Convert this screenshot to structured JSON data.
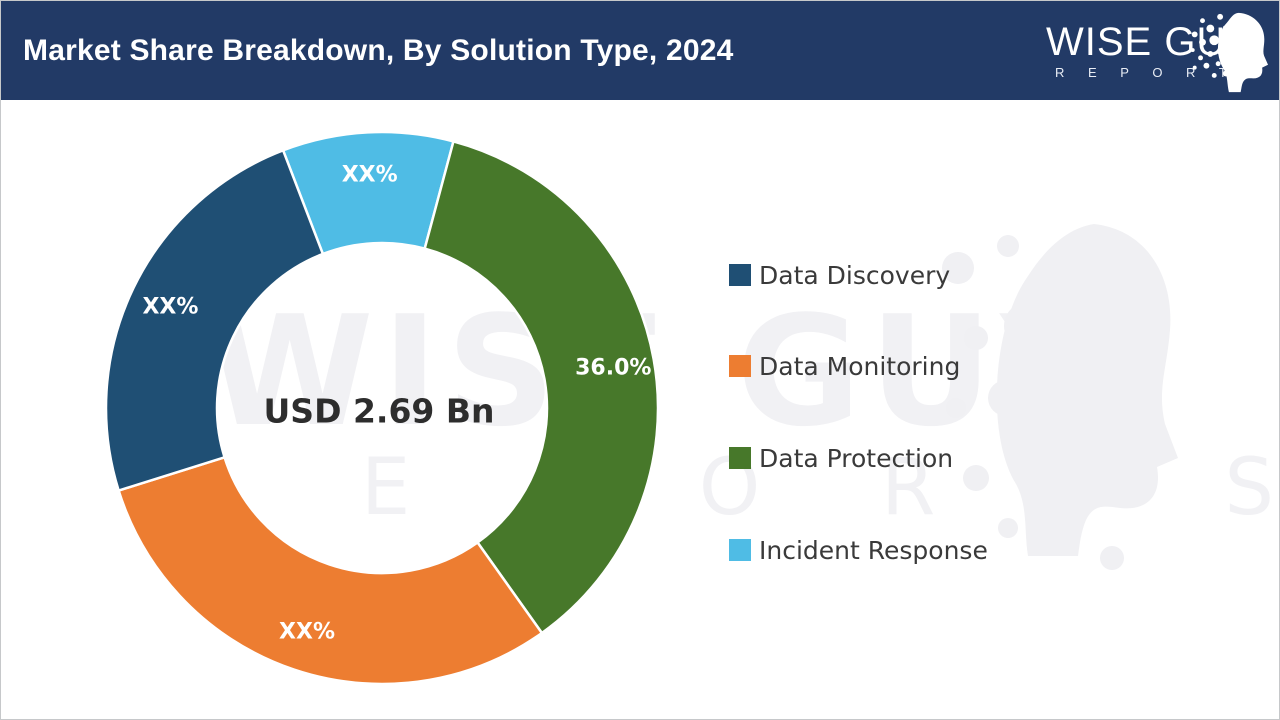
{
  "header": {
    "title": "Market Share Breakdown, By Solution Type, 2024",
    "bg_color": "#223A66",
    "logo": {
      "wordmark": "WISE GUY",
      "subtext": "R E P O R T S"
    }
  },
  "chart_data": {
    "type": "pie",
    "subtype": "donut",
    "title": "Market Share Breakdown, By Solution Type, 2024",
    "center_label": "USD 2.69 Bn",
    "start_angle_deg": -21,
    "direction": "clockwise",
    "legend_position": "right",
    "segments": [
      {
        "label": "Incident Response",
        "display_value": "XX%",
        "value_pct": 10,
        "color": "#4FBCE5"
      },
      {
        "label": "Data Protection",
        "display_value": "36.0%",
        "value_pct": 36,
        "color": "#47782A"
      },
      {
        "label": "Data Monitoring",
        "display_value": "XX%",
        "value_pct": 30,
        "color": "#ED7D31"
      },
      {
        "label": "Data Discovery",
        "display_value": "XX%",
        "value_pct": 24,
        "color": "#1F4F74"
      }
    ]
  },
  "legend": {
    "items": [
      {
        "label": "Data Discovery",
        "color": "#1F4F74"
      },
      {
        "label": "Data Monitoring",
        "color": "#ED7D31"
      },
      {
        "label": "Data Protection",
        "color": "#47782A"
      },
      {
        "label": "Incident Response",
        "color": "#4FBCE5"
      }
    ]
  },
  "watermark": {
    "line1": "WISE GUY",
    "line2": "R E P O R T S"
  }
}
